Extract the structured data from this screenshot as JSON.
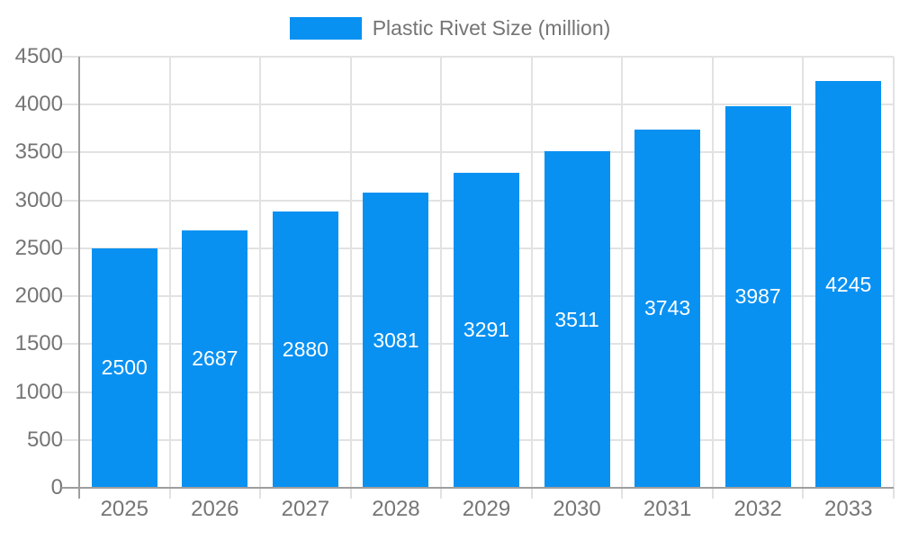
{
  "chart_data": {
    "type": "bar",
    "title": "",
    "legend": {
      "position": "top",
      "label": "Plastic Rivet Size (million)"
    },
    "categories": [
      "2025",
      "2026",
      "2027",
      "2028",
      "2029",
      "2030",
      "2031",
      "2032",
      "2033"
    ],
    "series": [
      {
        "name": "Plastic Rivet Size (million)",
        "values": [
          2500,
          2687,
          2880,
          3081,
          3291,
          3511,
          3743,
          3987,
          4245
        ]
      }
    ],
    "data_labels": [
      "2500",
      "2687",
      "2880",
      "3081",
      "3291",
      "3511",
      "3743",
      "3987",
      "4245"
    ],
    "xlabel": "",
    "ylabel": "",
    "ylim": [
      0,
      4500
    ],
    "yticks": [
      0,
      500,
      1000,
      1500,
      2000,
      2500,
      3000,
      3500,
      4000,
      4500
    ],
    "grid": true,
    "colors": {
      "bar": "#0991f2",
      "bar_label_text": "#ffffff",
      "axis_text": "#757575",
      "grid_line": "#e2e2e2",
      "axis_line": "#9e9e9e",
      "legend_text": "#757575",
      "background": "#ffffff"
    }
  }
}
